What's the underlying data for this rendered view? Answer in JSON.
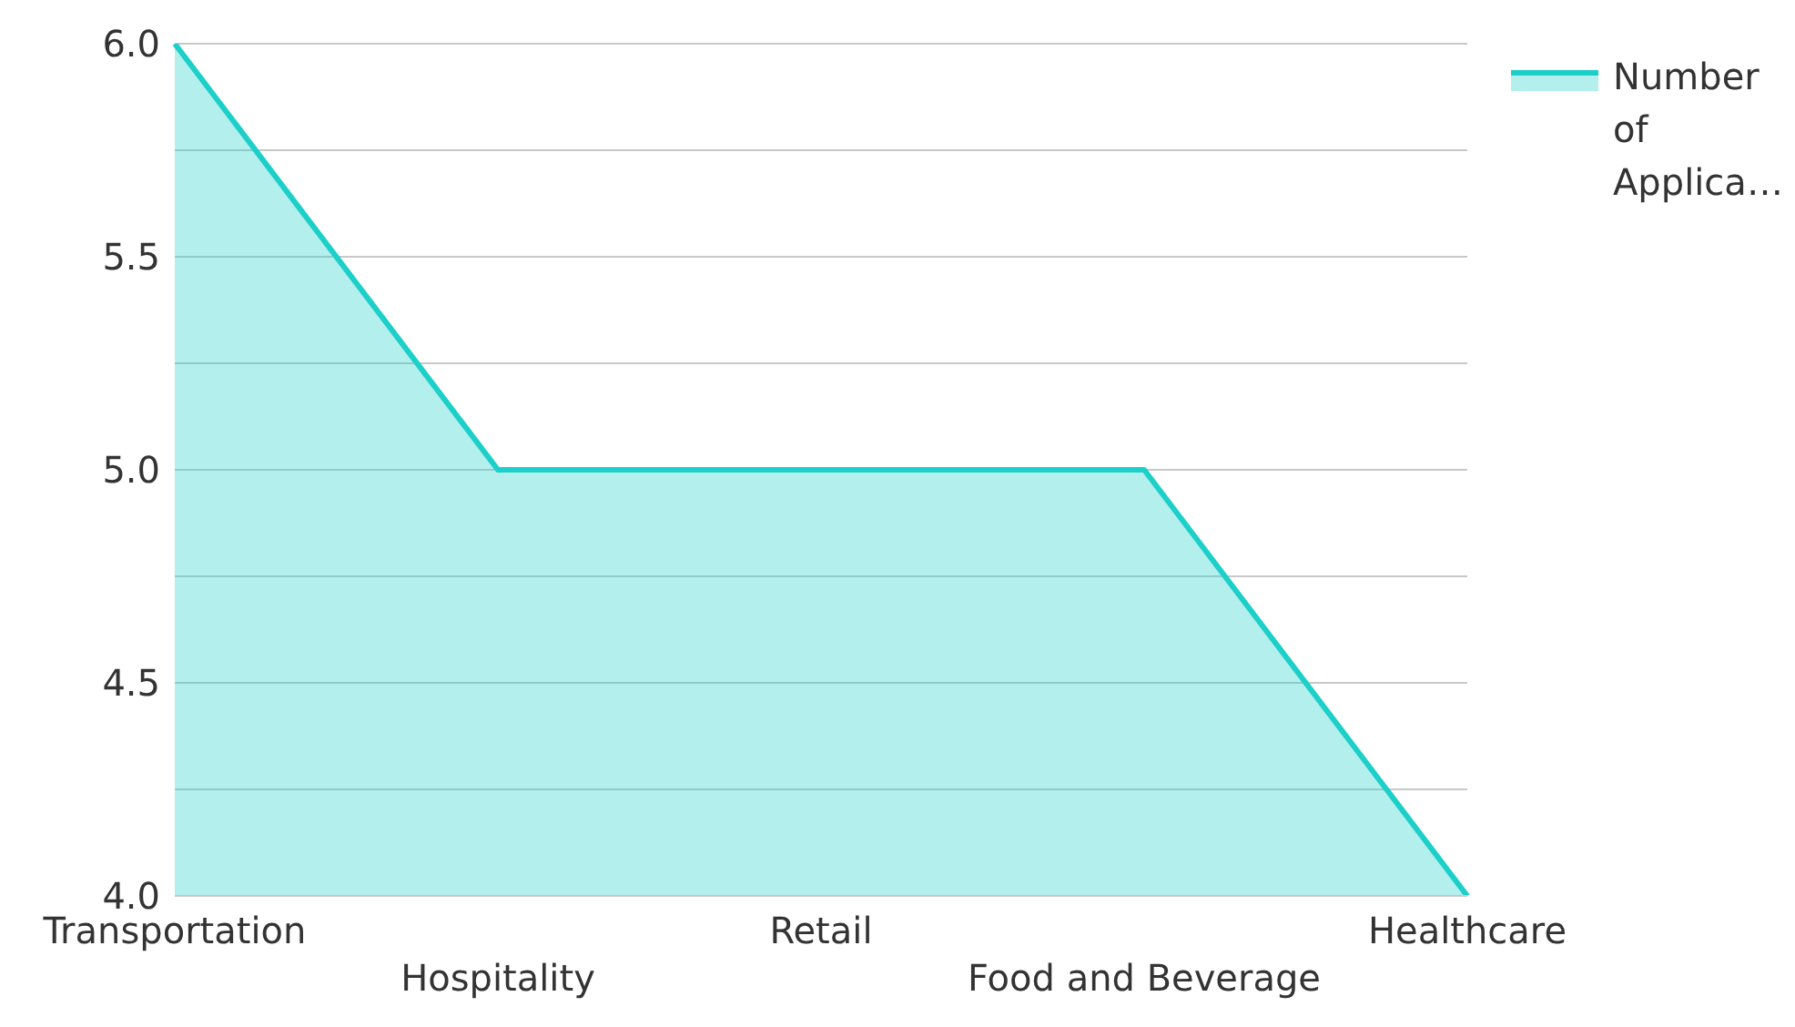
{
  "chart_data": {
    "type": "area",
    "categories": [
      "Transportation",
      "Hospitality",
      "Retail",
      "Food and Beverage",
      "Healthcare"
    ],
    "series": [
      {
        "name": "Number of Applica…",
        "color": "#1ccfc9",
        "values": [
          6,
          5,
          5,
          5,
          4
        ]
      }
    ],
    "ylim": [
      4,
      6
    ],
    "yticks": [
      {
        "value": 4,
        "label": "4.0"
      },
      {
        "value": 4.25,
        "label": null
      },
      {
        "value": 4.5,
        "label": "4.5"
      },
      {
        "value": 4.75,
        "label": null
      },
      {
        "value": 5,
        "label": "5.0"
      },
      {
        "value": 5.25,
        "label": null
      },
      {
        "value": 5.5,
        "label": "5.5"
      },
      {
        "value": 5.75,
        "label": null
      },
      {
        "value": 6,
        "label": "6.0"
      }
    ],
    "grid": "y",
    "legend": "top right",
    "marker": "none",
    "line_style": "solid"
  }
}
